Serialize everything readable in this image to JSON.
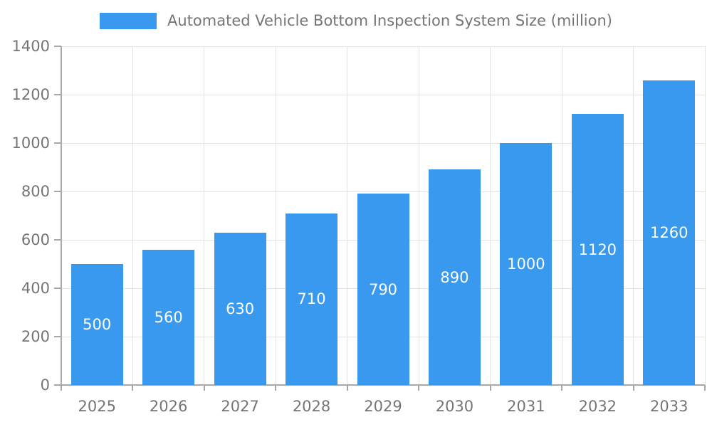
{
  "chart_data": {
    "type": "bar",
    "title": "Automated Vehicle Bottom Inspection System Size (million)",
    "categories": [
      "2025",
      "2026",
      "2027",
      "2028",
      "2029",
      "2030",
      "2031",
      "2032",
      "2033"
    ],
    "values": [
      500,
      560,
      630,
      710,
      790,
      890,
      1000,
      1120,
      1260
    ],
    "value_labels": [
      "500",
      "560",
      "630",
      "710",
      "790",
      "890",
      "1000",
      "1120",
      "1260"
    ],
    "xlabel": "",
    "ylabel": "",
    "ylim": [
      0,
      1400
    ],
    "yticks": [
      0,
      200,
      400,
      600,
      800,
      1000,
      1200,
      1400
    ],
    "grid": true,
    "legend_position": "top",
    "colors": {
      "bar": "#3899EE",
      "value_label": "#FFFFFF",
      "axis_text": "#757575",
      "gridline": "#E3E3E3",
      "axis_line": "#A8A8A8",
      "background": "#FFFFFF"
    }
  },
  "legend": {
    "label": "Automated Vehicle Bottom Inspection System Size (million)"
  }
}
